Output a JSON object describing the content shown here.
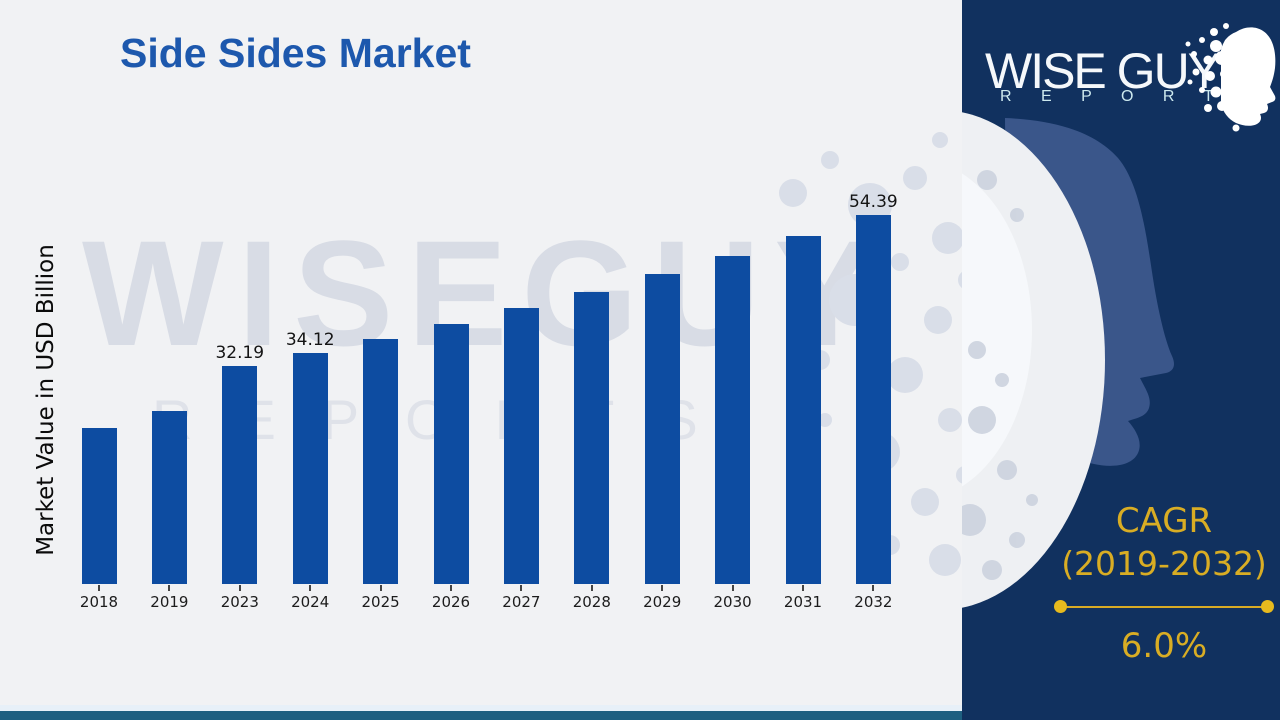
{
  "title": "Side Sides Market",
  "ylabel": "Market Value in USD Billion",
  "watermark": {
    "line1": "WISEGUY",
    "line2": "REPORTS"
  },
  "brand": {
    "line1": "WISE GUY",
    "line2": "R E P O R T S",
    "logo_face_icon": "dotted-face-profile"
  },
  "cagr": {
    "label": "CAGR",
    "range": "(2019-2032)",
    "value": "6.0%"
  },
  "colors": {
    "background": "#f1f2f4",
    "bar": "#0d4ca1",
    "title_blue": "#1d58ad",
    "panel_navy": "#11315f",
    "panel_face_blue": "#3a568a",
    "gold": "#d9ad24",
    "teal_strip": "#1e5f80",
    "watermark_gray": "#d8dce5"
  },
  "chart_data": {
    "type": "bar",
    "title": "Side Sides Market",
    "xlabel": "",
    "ylabel": "Market Value in USD Billion",
    "categories": [
      "2018",
      "2019",
      "2023",
      "2024",
      "2025",
      "2026",
      "2027",
      "2028",
      "2029",
      "2030",
      "2031",
      "2032"
    ],
    "values": [
      23.0,
      25.5,
      32.19,
      34.12,
      36.17,
      38.34,
      40.64,
      43.08,
      45.66,
      48.4,
      51.31,
      54.39
    ],
    "data_labels": [
      "",
      "",
      "32.19",
      "34.12",
      "",
      "",
      "",
      "",
      "",
      "",
      "",
      "54.39"
    ],
    "ylim": [
      0,
      57
    ],
    "grid": false,
    "legend": false,
    "bar_color": "#0d4ca1"
  }
}
